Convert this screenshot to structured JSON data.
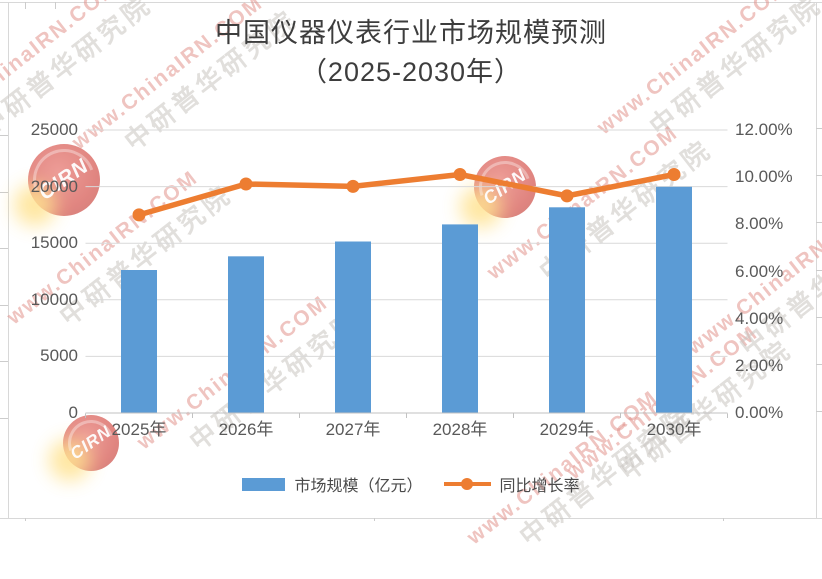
{
  "title": {
    "line1": "中国仪器仪表行业市场规模预测",
    "line2": "（2025-2030年）"
  },
  "chart_data": {
    "type": "bar",
    "subtype": "bar+line dual axis",
    "title": "中国仪器仪表行业市场规模预测（2025-2030年）",
    "categories": [
      "2025年",
      "2026年",
      "2027年",
      "2028年",
      "2029年",
      "2030年"
    ],
    "series": [
      {
        "name": "市场规模（亿元）",
        "type": "bar",
        "axis": "left",
        "color": "#5B9BD5",
        "values": [
          12500,
          13700,
          15000,
          16500,
          18000,
          19800
        ]
      },
      {
        "name": "同比增长率",
        "type": "line",
        "axis": "right",
        "color": "#ED7D31",
        "unit": "%",
        "values": [
          8.3,
          9.6,
          9.5,
          10.0,
          9.1,
          10.0
        ]
      }
    ],
    "left_axis": {
      "min": 0,
      "max": 25000,
      "step": 5000,
      "ticks": [
        "25000",
        "20000",
        "15000",
        "10000",
        "5000",
        "0"
      ]
    },
    "right_axis": {
      "min": 0,
      "max": 12,
      "step": 2,
      "ticks": [
        "12.00%",
        "10.00%",
        "8.00%",
        "6.00%",
        "4.00%",
        "2.00%",
        "0.00%"
      ]
    },
    "grid": true,
    "legend_position": "bottom"
  },
  "legend": {
    "bar_label": "市场规模（亿元）",
    "line_label": "同比增长率"
  },
  "watermark": {
    "url_text": "www.ChinaIRN.COM",
    "org_text": "中研普华研究院",
    "logo_text": "CIRN"
  },
  "colors": {
    "bar": "#5B9BD5",
    "line": "#ED7D31",
    "grid": "#D9D9D9",
    "axis_text": "#595959"
  }
}
